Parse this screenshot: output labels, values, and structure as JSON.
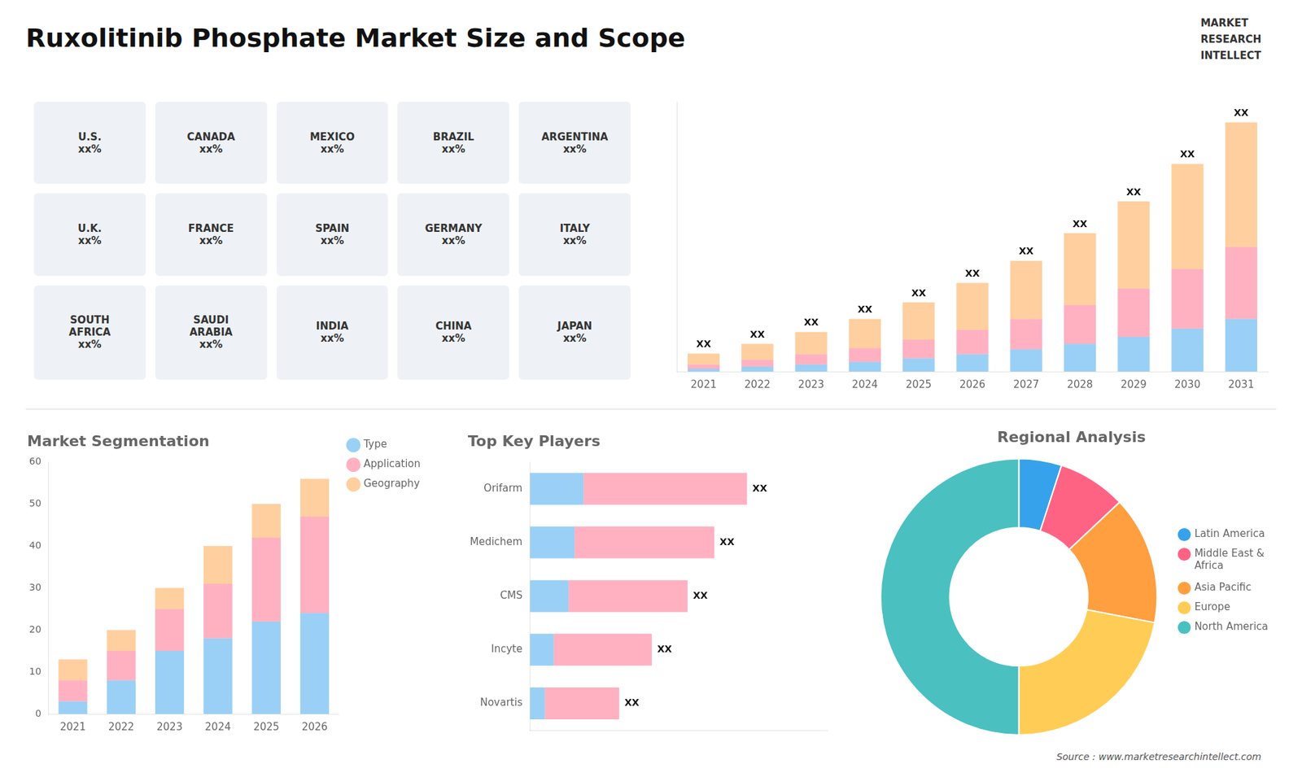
{
  "title": "Ruxolitinib Phosphate Market Size and Scope",
  "annotations": [
    "MARKET",
    "RESEARCH",
    "INTELLECT",
    "Source : www.marketresearchintellect.com"
  ],
  "chart_data": [
    {
      "type": "map",
      "annotations": [
        "U.S.\nxx%",
        "CANADA\nxx%",
        "MEXICO\nxx%",
        "BRAZIL\nxx%",
        "ARGENTINA\nxx%",
        "U.K.\nxx%",
        "FRANCE\nxx%",
        "SPAIN\nxx%",
        "GERMANY\nxx%",
        "ITALY\nxx%",
        "SOUTH\nAFRICA\nxx%",
        "SAUDI\nARABIA\nxx%",
        "INDIA\nxx%",
        "CHINA\nxx%",
        "JAPAN\nxx%"
      ]
    },
    {
      "type": "bar",
      "stacked": true,
      "categories": [
        "2021",
        "2022",
        "2023",
        "2024",
        "2025",
        "2026",
        "2027",
        "2028",
        "2029",
        "2030",
        "2031"
      ],
      "series": [
        {
          "values": [
            2,
            3.5,
            5,
            7,
            9.5,
            12.5,
            16,
            20,
            25,
            31,
            38
          ]
        },
        {
          "values": [
            3,
            5,
            7.5,
            10,
            13.5,
            17.5,
            22,
            28,
            35,
            43,
            52
          ]
        },
        {
          "values": [
            8,
            11.5,
            16,
            21,
            27,
            34,
            42,
            52,
            63,
            76,
            90
          ],
          "value_labels": [
            "XX",
            "XX",
            "XX",
            "XX",
            "XX",
            "XX",
            "XX",
            "XX",
            "XX",
            "XX",
            "XX"
          ]
        }
      ],
      "ylim": [
        0,
        195
      ],
      "tick_labels": "x",
      "grid": false
    },
    {
      "type": "bar",
      "title": "Market Segmentation",
      "stacked": true,
      "categories": [
        "2021",
        "2022",
        "2023",
        "2024",
        "2025",
        "2026"
      ],
      "series": [
        {
          "name": "Type",
          "values": [
            3,
            8,
            15,
            18,
            22,
            24
          ]
        },
        {
          "name": "Application",
          "values": [
            5,
            7,
            10,
            13,
            20,
            23
          ]
        },
        {
          "name": "Geography",
          "values": [
            5,
            5,
            5,
            9,
            8,
            9
          ]
        }
      ],
      "ylim": [
        0,
        60
      ],
      "yticks": [
        0,
        10,
        20,
        30,
        40,
        50,
        60
      ],
      "legend": "right",
      "grid": false
    },
    {
      "type": "bar",
      "title": "Top Key Players",
      "orientation": "horizontal",
      "stacked": true,
      "categories": [
        "Orifarm",
        "Medichem",
        "CMS",
        "Incyte",
        "Novartis"
      ],
      "series": [
        {
          "values": [
            18,
            15,
            13,
            8,
            5
          ]
        },
        {
          "values": [
            55,
            47,
            40,
            33,
            25
          ],
          "value_labels": [
            "XX",
            "XX",
            "XX",
            "XX",
            "XX"
          ]
        }
      ],
      "xlim": [
        0,
        100
      ],
      "tick_labels": "y",
      "grid": false
    },
    {
      "type": "doughnut",
      "title": "Regional Analysis",
      "categories": [
        "Latin America",
        "Middle East &\nAfrica",
        "Asia Pacific",
        "Europe",
        "North America"
      ],
      "values": [
        5,
        8,
        15,
        22,
        50
      ],
      "legend": "right"
    }
  ]
}
